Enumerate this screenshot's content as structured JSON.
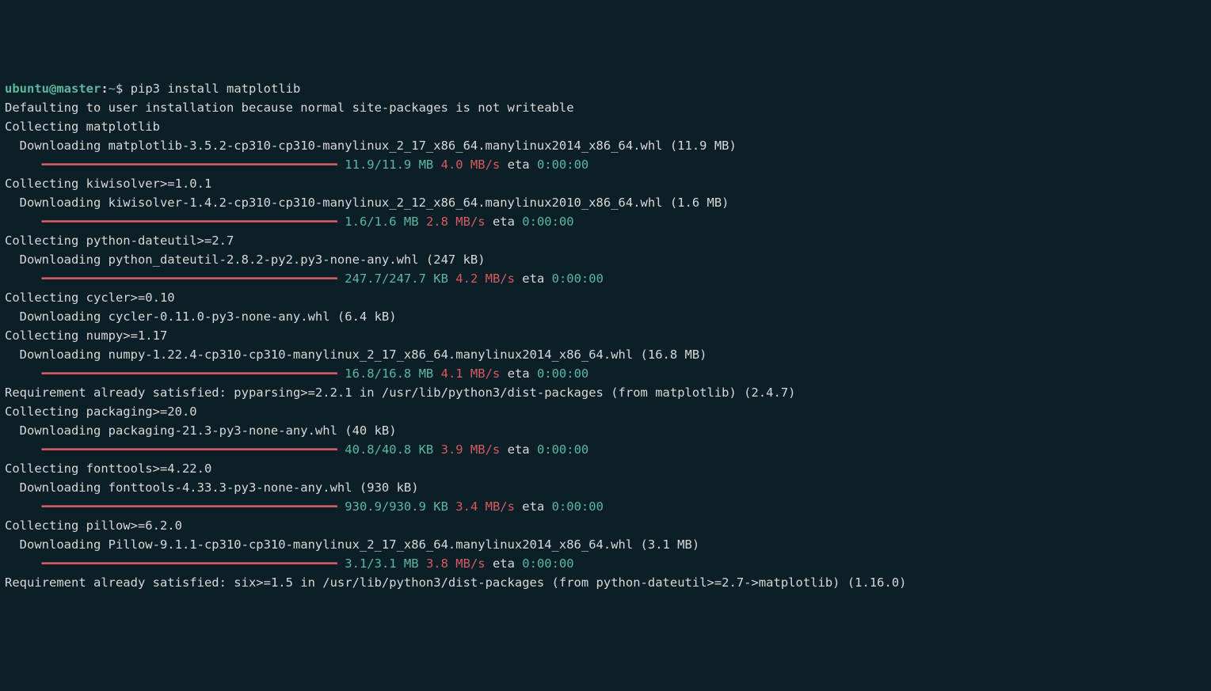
{
  "colors": {
    "background": "#0c1e26",
    "foreground": "#d8d8d8",
    "prompt_user": "#5bb89f",
    "prompt_cwd": "#5d8db3",
    "progress_bar": "#d65a62",
    "size_text": "#5bb89f",
    "speed_text": "#d65a62",
    "eta_time": "#5bb89f"
  },
  "prompt": {
    "user_host": "ubuntu@master",
    "colon": ":",
    "cwd": "~",
    "dollar": "$ "
  },
  "command": "pip3 install matplotlib",
  "bar_glyph": "━━━━━━━━━━━━━━━━━━━━━━━━━━━━━━━━━━━━━━━━",
  "lines": [
    {
      "kind": "plain",
      "text": "Defaulting to user installation because normal site-packages is not writeable"
    },
    {
      "kind": "plain",
      "text": "Collecting matplotlib"
    },
    {
      "kind": "plain",
      "indent": 2,
      "text": "Downloading matplotlib-3.5.2-cp310-cp310-manylinux_2_17_x86_64.manylinux2014_x86_64.whl (11.9 MB)"
    },
    {
      "kind": "progress",
      "size": "11.9/11.9 MB",
      "speed": "4.0 MB/s",
      "eta": "0:00:00"
    },
    {
      "kind": "plain",
      "text": "Collecting kiwisolver>=1.0.1"
    },
    {
      "kind": "plain",
      "indent": 2,
      "text": "Downloading kiwisolver-1.4.2-cp310-cp310-manylinux_2_12_x86_64.manylinux2010_x86_64.whl (1.6 MB)"
    },
    {
      "kind": "progress",
      "size": "1.6/1.6 MB",
      "speed": "2.8 MB/s",
      "eta": "0:00:00"
    },
    {
      "kind": "plain",
      "text": "Collecting python-dateutil>=2.7"
    },
    {
      "kind": "plain",
      "indent": 2,
      "text": "Downloading python_dateutil-2.8.2-py2.py3-none-any.whl (247 kB)"
    },
    {
      "kind": "progress",
      "size": "247.7/247.7 KB",
      "speed": "4.2 MB/s",
      "eta": "0:00:00"
    },
    {
      "kind": "plain",
      "text": "Collecting cycler>=0.10"
    },
    {
      "kind": "plain",
      "indent": 2,
      "text": "Downloading cycler-0.11.0-py3-none-any.whl (6.4 kB)"
    },
    {
      "kind": "plain",
      "text": "Collecting numpy>=1.17"
    },
    {
      "kind": "plain",
      "indent": 2,
      "text": "Downloading numpy-1.22.4-cp310-cp310-manylinux_2_17_x86_64.manylinux2014_x86_64.whl (16.8 MB)"
    },
    {
      "kind": "progress",
      "size": "16.8/16.8 MB",
      "speed": "4.1 MB/s",
      "eta": "0:00:00"
    },
    {
      "kind": "plain",
      "text": "Requirement already satisfied: pyparsing>=2.2.1 in /usr/lib/python3/dist-packages (from matplotlib) (2.4.7)"
    },
    {
      "kind": "plain",
      "text": "Collecting packaging>=20.0"
    },
    {
      "kind": "plain",
      "indent": 2,
      "text": "Downloading packaging-21.3-py3-none-any.whl (40 kB)"
    },
    {
      "kind": "progress",
      "size": "40.8/40.8 KB",
      "speed": "3.9 MB/s",
      "eta": "0:00:00"
    },
    {
      "kind": "plain",
      "text": "Collecting fonttools>=4.22.0"
    },
    {
      "kind": "plain",
      "indent": 2,
      "text": "Downloading fonttools-4.33.3-py3-none-any.whl (930 kB)"
    },
    {
      "kind": "progress",
      "size": "930.9/930.9 KB",
      "speed": "3.4 MB/s",
      "eta": "0:00:00"
    },
    {
      "kind": "plain",
      "text": "Collecting pillow>=6.2.0"
    },
    {
      "kind": "plain",
      "indent": 2,
      "text": "Downloading Pillow-9.1.1-cp310-cp310-manylinux_2_17_x86_64.manylinux2014_x86_64.whl (3.1 MB)"
    },
    {
      "kind": "progress",
      "size": "3.1/3.1 MB",
      "speed": "3.8 MB/s",
      "eta": "0:00:00"
    },
    {
      "kind": "plain",
      "text": "Requirement already satisfied: six>=1.5 in /usr/lib/python3/dist-packages (from python-dateutil>=2.7->matplotlib) (1.16.0)"
    }
  ]
}
